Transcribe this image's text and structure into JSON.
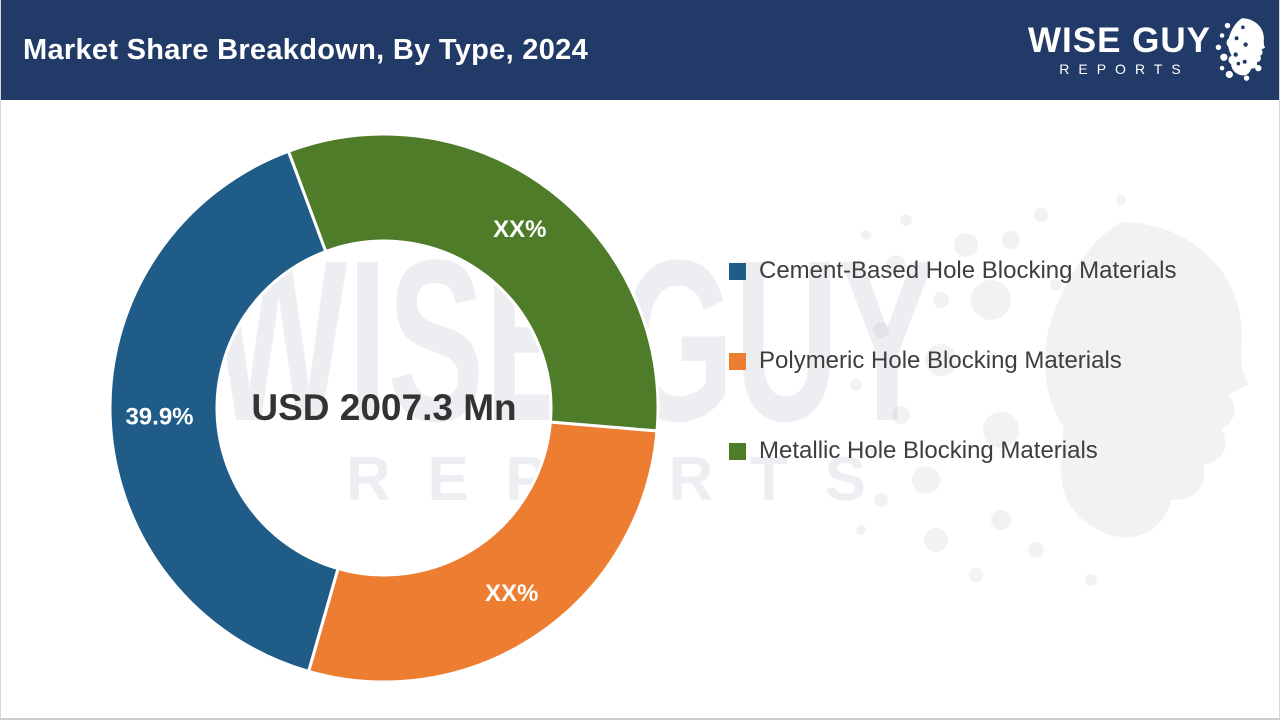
{
  "header": {
    "title": "Market Share Breakdown, By Type, 2024",
    "logo": {
      "name": "WISE GUY",
      "sub": "REPORTS"
    }
  },
  "watermark": {
    "name": "WISE GUY",
    "sub": "REPORTS"
  },
  "chart_data": {
    "type": "pie",
    "subtype": "donut",
    "title": "Market Share Breakdown, By Type, 2024",
    "center_label": "USD 2007.3 Mn",
    "start_angle_deg": 110.4,
    "direction": "counterclockwise",
    "inner_radius_ratio": 0.61,
    "legend_position": "right",
    "series": [
      {
        "label": "Cement-Based Hole Blocking Materials",
        "value": 39.9,
        "display_pct": "39.9%",
        "color": "#1F5C88"
      },
      {
        "label": "Polymeric Hole Blocking Materials",
        "value": 28.1,
        "display_pct": "XX%",
        "color": "#ED7D31"
      },
      {
        "label": "Metallic Hole Blocking Materials",
        "value": 32.0,
        "display_pct": "XX%",
        "color": "#4E7C28"
      }
    ]
  },
  "colors": {
    "header_bg": "#223A67",
    "watermark": "#F2F2F4",
    "segment_edge": "#FFFFFF",
    "center_label_text": "#333333",
    "legend_text": "#3E3E3E"
  }
}
